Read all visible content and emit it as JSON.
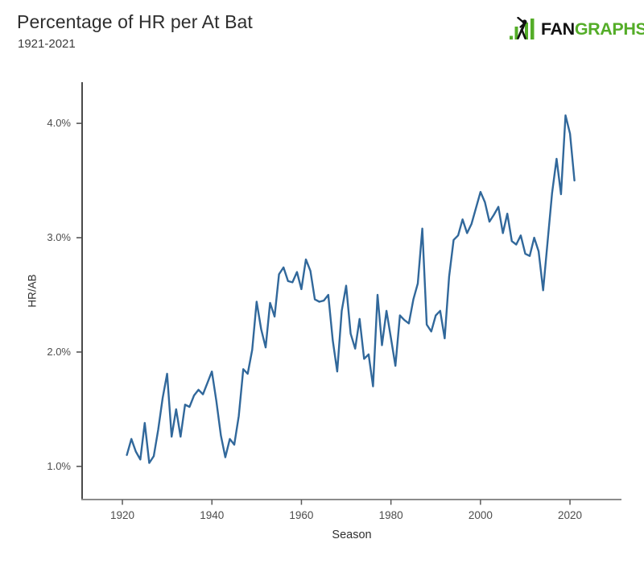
{
  "header": {
    "title": "Percentage of HR per At Bat",
    "subtitle": "1921-2021",
    "logo": {
      "fan": "FAN",
      "graphs": "GRAPHS",
      "icon": "batter-with-bar-chart-icon",
      "green": "#54ad28",
      "black": "#111111"
    }
  },
  "chart_data": {
    "type": "line",
    "title": "Percentage of HR per At Bat",
    "subtitle": "1921-2021",
    "xlabel": "Season",
    "ylabel": "HR/AB",
    "grid": false,
    "legend": "none",
    "line_color": "#31689b",
    "xlim": [
      1911,
      2031.5
    ],
    "ylim": [
      0.71,
      4.36
    ],
    "x_ticks": [
      1920,
      1940,
      1960,
      1980,
      2000,
      2020
    ],
    "y_ticks": [
      {
        "value": 1.0,
        "label": "1.0%"
      },
      {
        "value": 2.0,
        "label": "2.0%"
      },
      {
        "value": 3.0,
        "label": "3.0%"
      },
      {
        "value": 4.0,
        "label": "4.0%"
      }
    ],
    "series": [
      {
        "name": "HR/AB %",
        "x": [
          1921,
          1922,
          1923,
          1924,
          1925,
          1926,
          1927,
          1928,
          1929,
          1930,
          1931,
          1932,
          1933,
          1934,
          1935,
          1936,
          1937,
          1938,
          1939,
          1940,
          1941,
          1942,
          1943,
          1944,
          1945,
          1946,
          1947,
          1948,
          1949,
          1950,
          1951,
          1952,
          1953,
          1954,
          1955,
          1956,
          1957,
          1958,
          1959,
          1960,
          1961,
          1962,
          1963,
          1964,
          1965,
          1966,
          1967,
          1968,
          1969,
          1970,
          1971,
          1972,
          1973,
          1974,
          1975,
          1976,
          1977,
          1978,
          1979,
          1980,
          1981,
          1982,
          1983,
          1984,
          1985,
          1986,
          1987,
          1988,
          1989,
          1990,
          1991,
          1992,
          1993,
          1994,
          1995,
          1996,
          1997,
          1998,
          1999,
          2000,
          2001,
          2002,
          2003,
          2004,
          2005,
          2006,
          2007,
          2008,
          2009,
          2010,
          2011,
          2012,
          2013,
          2014,
          2015,
          2016,
          2017,
          2018,
          2019,
          2020,
          2021
        ],
        "y": [
          1.1,
          1.24,
          1.13,
          1.06,
          1.38,
          1.03,
          1.09,
          1.32,
          1.6,
          1.81,
          1.26,
          1.5,
          1.26,
          1.54,
          1.52,
          1.62,
          1.67,
          1.63,
          1.73,
          1.83,
          1.57,
          1.27,
          1.08,
          1.24,
          1.19,
          1.44,
          1.85,
          1.81,
          2.02,
          2.44,
          2.2,
          2.04,
          2.43,
          2.31,
          2.68,
          2.74,
          2.62,
          2.61,
          2.7,
          2.55,
          2.81,
          2.71,
          2.46,
          2.44,
          2.45,
          2.5,
          2.1,
          1.83,
          2.36,
          2.58,
          2.16,
          2.03,
          2.29,
          1.94,
          1.98,
          1.7,
          2.5,
          2.06,
          2.36,
          2.12,
          1.88,
          2.32,
          2.28,
          2.25,
          2.46,
          2.6,
          3.08,
          2.24,
          2.18,
          2.32,
          2.36,
          2.12,
          2.66,
          2.98,
          3.02,
          3.16,
          3.04,
          3.12,
          3.26,
          3.4,
          3.31,
          3.14,
          3.2,
          3.27,
          3.04,
          3.21,
          2.97,
          2.94,
          3.02,
          2.86,
          2.84,
          3.0,
          2.88,
          2.54,
          2.97,
          3.39,
          3.69,
          3.38,
          4.07,
          3.91,
          3.5
        ]
      }
    ]
  }
}
